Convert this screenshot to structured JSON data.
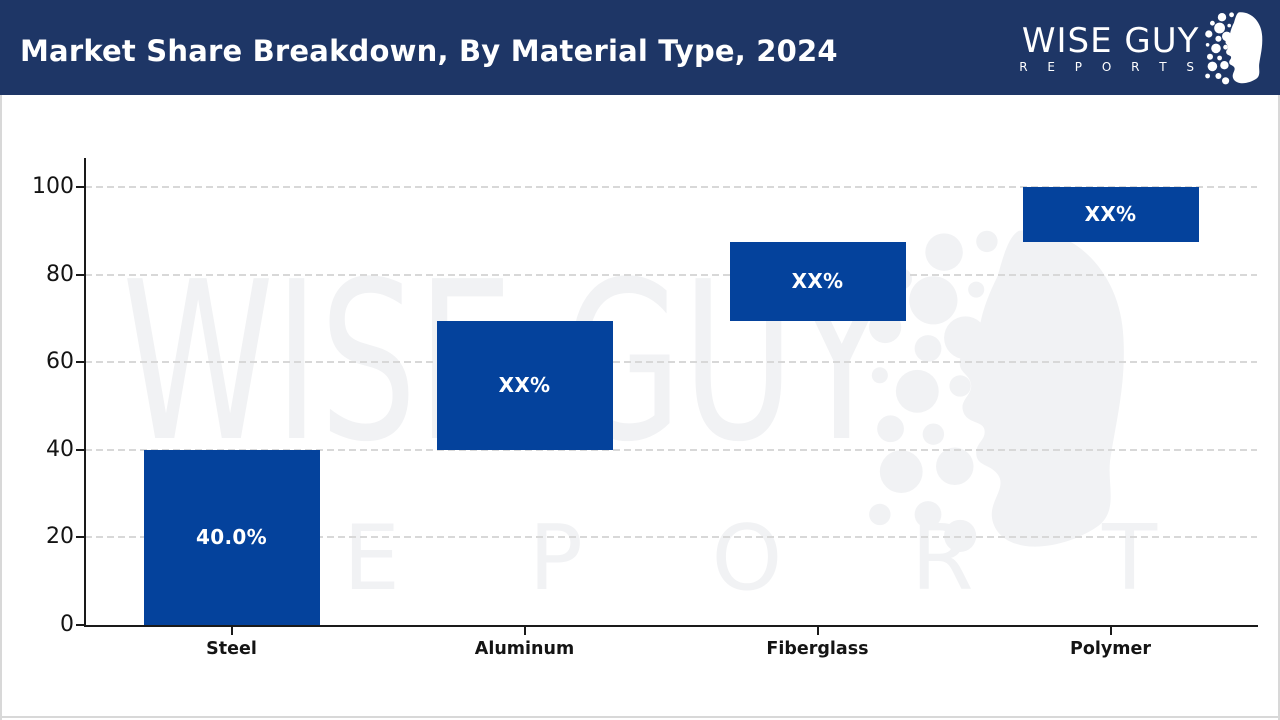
{
  "header": {
    "title": "Market Share Breakdown, By Material Type, 2024",
    "logo": {
      "line1": "WISE GUY",
      "line2": "R E P O R T S",
      "icon": "dotted-head-profile-icon"
    }
  },
  "watermark": {
    "line1": "WISE GUY",
    "line2": "R E P O R T S",
    "icon": "dotted-head-profile-icon"
  },
  "colors": {
    "header_bg": "#1e3666",
    "bar": "#04429c",
    "grid": "#d8d8d8",
    "axis": "#1a1a1a",
    "bar_label_text": "#ffffff",
    "watermark": "#f1f2f4",
    "border": "#d8d8d8"
  },
  "chart_data": {
    "type": "bar",
    "subtype": "waterfall",
    "title": "Market Share Breakdown, By Material Type, 2024",
    "categories": [
      "Steel",
      "Aluminum",
      "Fiberglass",
      "Polymer"
    ],
    "segments": [
      {
        "category": "Steel",
        "start": 0,
        "end": 40,
        "value": 40.0,
        "label": "40.0%"
      },
      {
        "category": "Aluminum",
        "start": 40,
        "end": 69.5,
        "value": 29.5,
        "label": "XX%"
      },
      {
        "category": "Fiberglass",
        "start": 69.5,
        "end": 87.5,
        "value": 18.0,
        "label": "XX%"
      },
      {
        "category": "Polymer",
        "start": 87.5,
        "end": 100,
        "value": 12.5,
        "label": "XX%"
      }
    ],
    "xlabel": "",
    "ylabel": "",
    "ylim": [
      0,
      100
    ],
    "yticks": [
      0,
      20,
      40,
      60,
      80,
      100
    ],
    "ytick_labels": [
      "0",
      "20",
      "40",
      "60",
      "80",
      "100"
    ],
    "grid": "dashed-horizontal",
    "legend": "none",
    "bar_color": "#04429c"
  }
}
